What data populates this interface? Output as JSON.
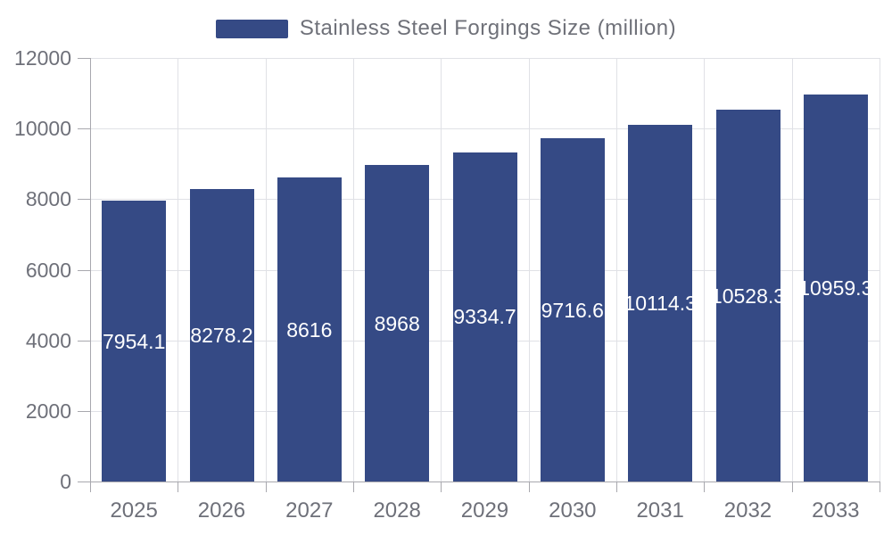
{
  "legend": {
    "label": "Stainless Steel Forgings Size (million)",
    "swatch_color": "#354a85"
  },
  "chart_data": {
    "type": "bar",
    "title": "Stainless Steel Forgings Size (million)",
    "series_name": "Stainless Steel Forgings Size (million)",
    "categories": [
      "2025",
      "2026",
      "2027",
      "2028",
      "2029",
      "2030",
      "2031",
      "2032",
      "2033"
    ],
    "values": [
      7954.1,
      8278.2,
      8616,
      8968,
      9334.7,
      9716.6,
      10114.3,
      10528.3,
      10959.3
    ],
    "value_labels": [
      "7954.1",
      "8278.2",
      "8616",
      "8968",
      "9334.7",
      "9716.6",
      "10114.3",
      "10528.3",
      "10959.3"
    ],
    "xlabel": "",
    "ylabel": "",
    "ylim": [
      0,
      12000
    ],
    "yticks": [
      0,
      2000,
      4000,
      6000,
      8000,
      10000,
      12000
    ],
    "ytick_labels": [
      "0",
      "2000",
      "4000",
      "6000",
      "8000",
      "10000",
      "12000"
    ],
    "grid": true,
    "legend_position": "top",
    "bar_label_position": "inside-center",
    "colors": {
      "bar": "#354a85",
      "bar_label": "#ffffff",
      "axis_text": "#6e7079",
      "grid_line": "#e0e1e6",
      "axis_line": "#a8a8ae",
      "background": "#ffffff"
    }
  }
}
